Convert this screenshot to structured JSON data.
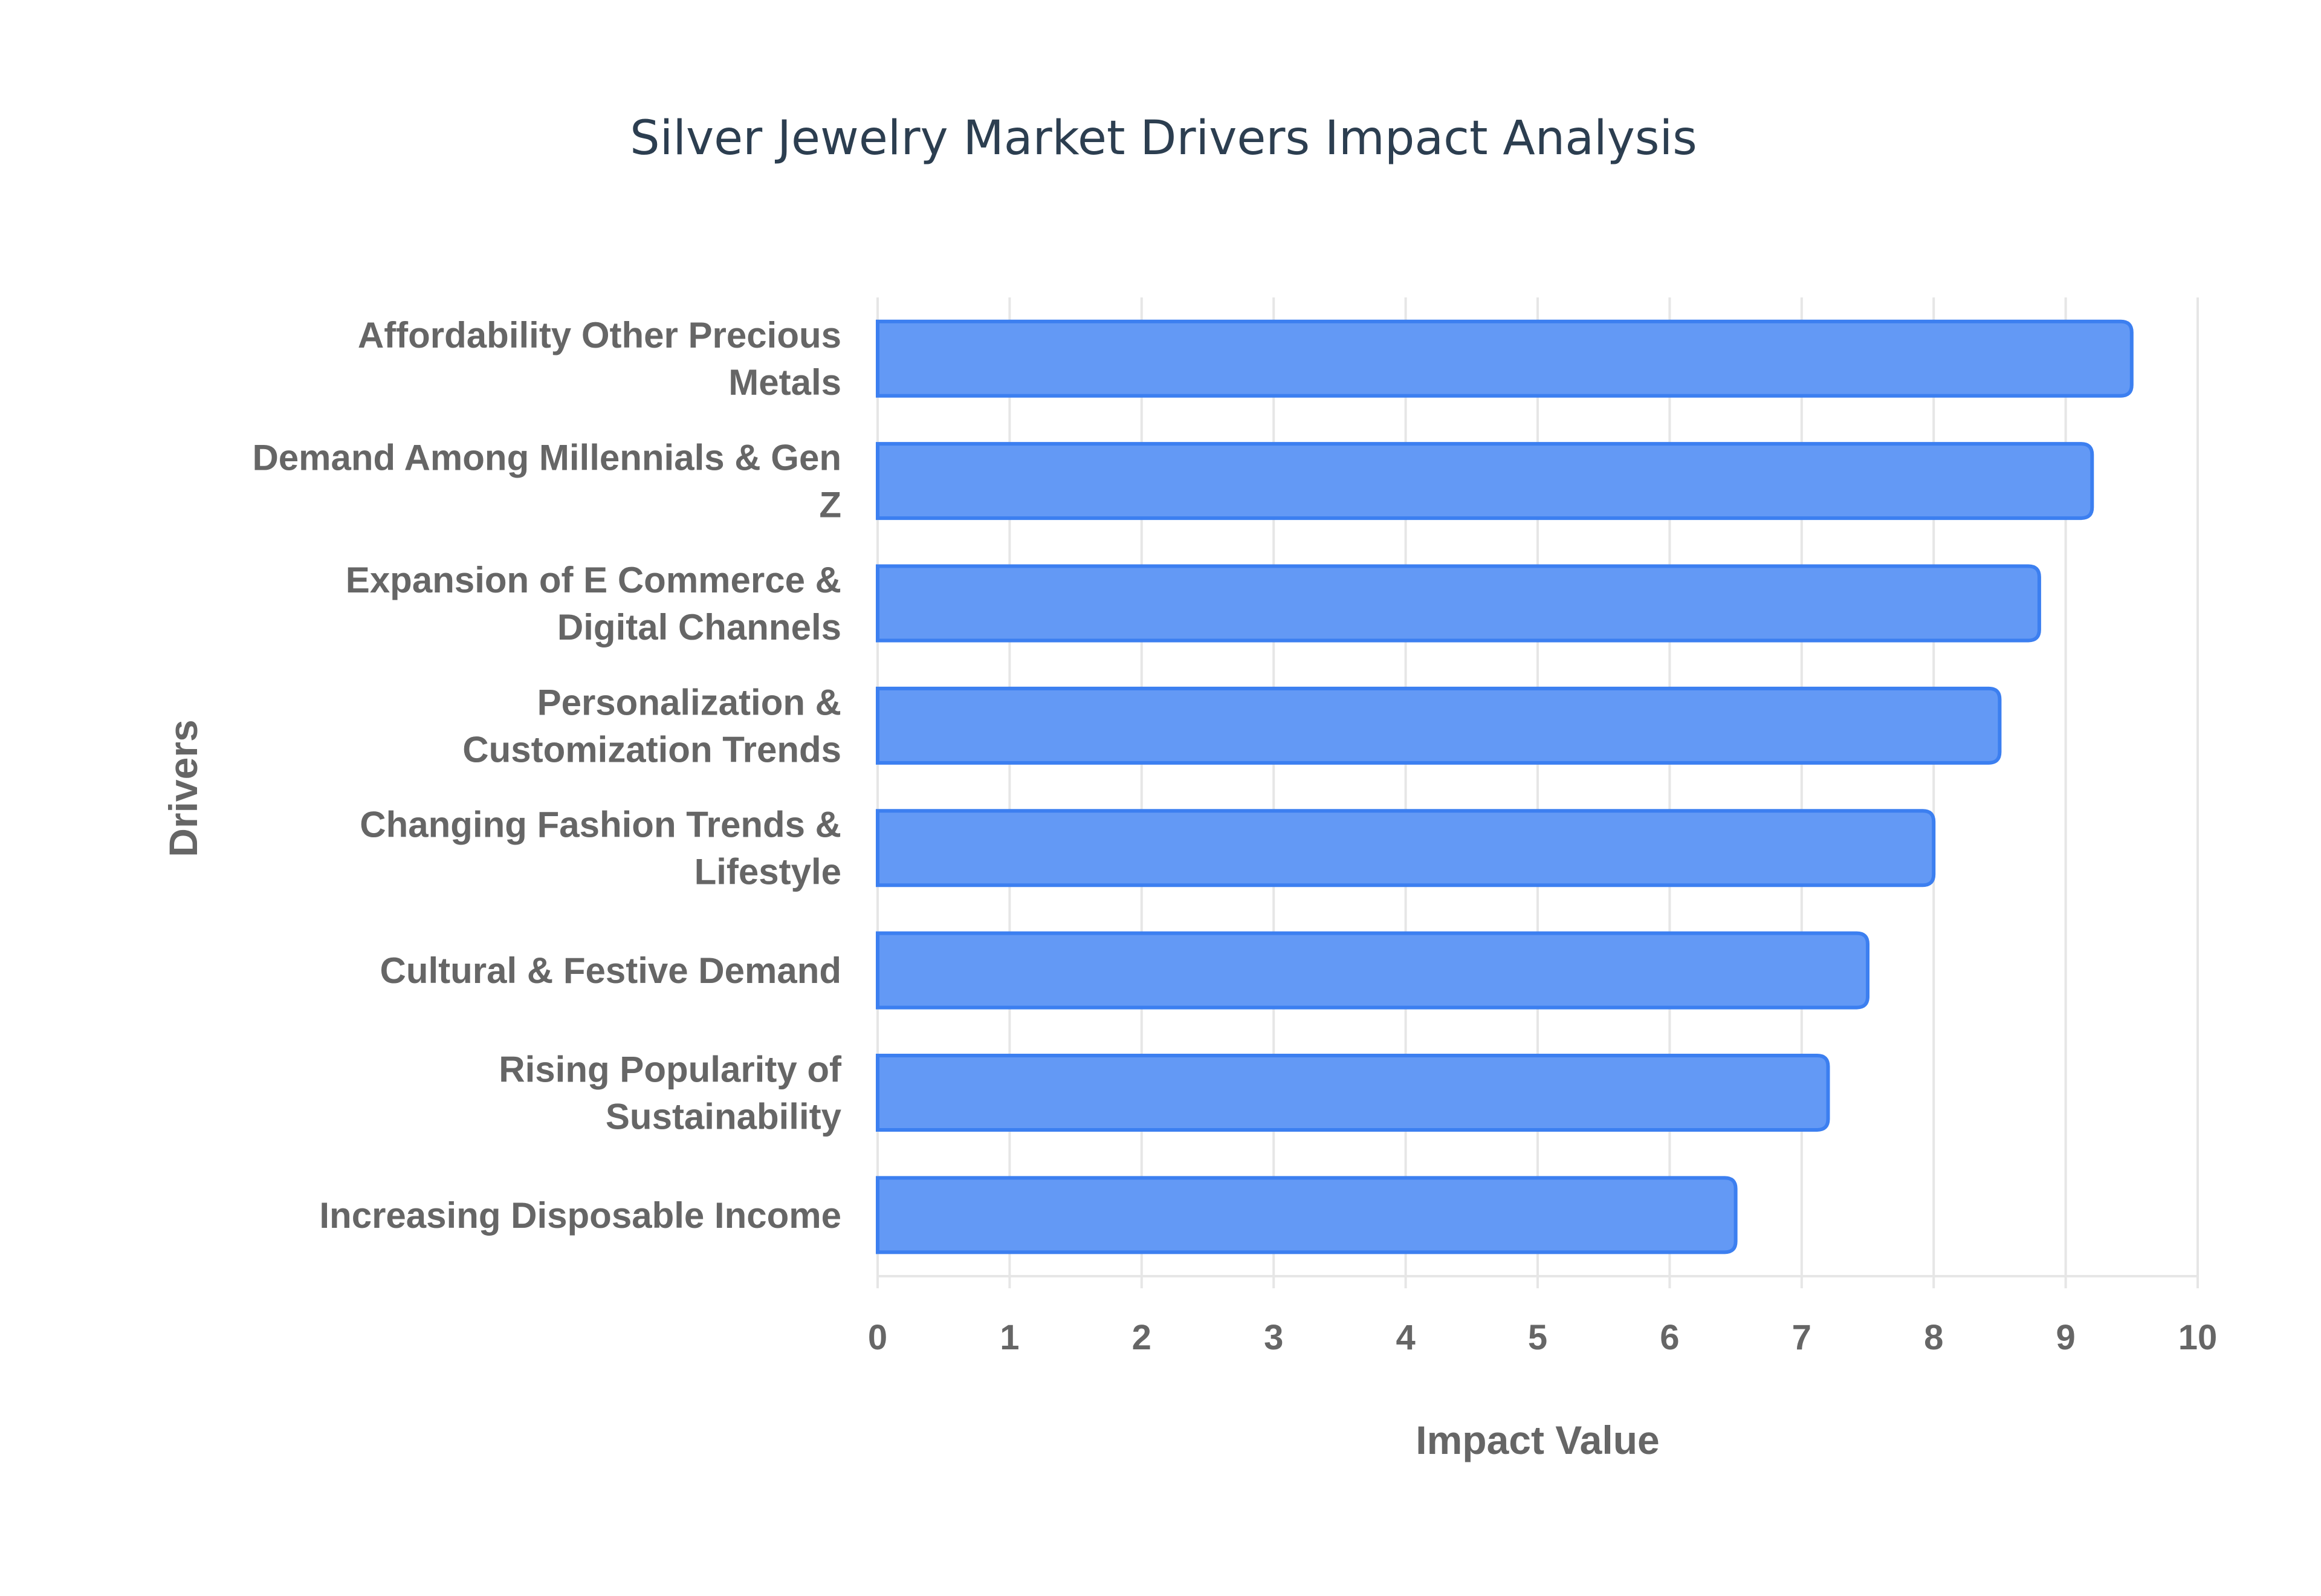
{
  "chart_data": {
    "type": "bar",
    "orientation": "horizontal",
    "title": "Silver Jewelry Market Drivers Impact Analysis",
    "xlabel": "Impact Value",
    "ylabel": "Drivers",
    "xlim": [
      0,
      10
    ],
    "xticks": [
      "0",
      "1",
      "2",
      "3",
      "4",
      "5",
      "6",
      "7",
      "8",
      "9",
      "10"
    ],
    "grid": true,
    "categories": [
      [
        "Affordability Other Precious",
        "Metals"
      ],
      [
        "Demand Among Millennials & Gen",
        "Z"
      ],
      [
        "Expansion of E Commerce &",
        "Digital Channels"
      ],
      [
        "Personalization &",
        "Customization Trends"
      ],
      [
        "Changing Fashion Trends &",
        "Lifestyle"
      ],
      [
        "Cultural & Festive Demand"
      ],
      [
        "Rising Popularity of",
        "Sustainability"
      ],
      [
        "Increasing Disposable Income"
      ]
    ],
    "values": [
      9.5,
      9.2,
      8.8,
      8.5,
      8.0,
      7.5,
      7.2,
      6.5
    ],
    "colors": {
      "fill": "#6399f5",
      "stroke": "#3c7ff0",
      "grid": "#e6e6e6"
    }
  }
}
